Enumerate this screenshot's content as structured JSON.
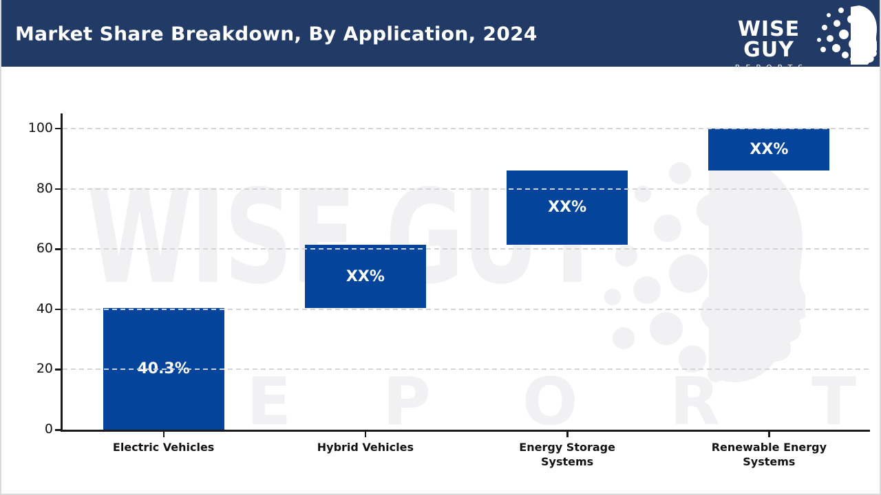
{
  "header": {
    "title": "Market Share Breakdown, By Application, 2024",
    "bg_color": "#213a66",
    "logo": {
      "wordmark": "WISE GUY",
      "subtext": "REPORTS"
    }
  },
  "watermark": {
    "line1": "WISE GUY",
    "line2": "R E P O R T S",
    "color": "#f1f1f3"
  },
  "chart_data": {
    "type": "bar",
    "subtype": "waterfall",
    "title": "Market Share Breakdown, By Application, 2024",
    "categories": [
      "Electric Vehicles",
      "Hybrid Vehicles",
      "Energy Storage Systems",
      "Renewable Energy Systems"
    ],
    "tick_labels": [
      "Electric Vehicles",
      "Hybrid Vehicles",
      "Energy Storage\nSystems",
      "Renewable Energy\nSystems"
    ],
    "segments": [
      {
        "category": "Electric Vehicles",
        "start": 0,
        "end": 40.3,
        "label": "40.3%"
      },
      {
        "category": "Hybrid Vehicles",
        "start": 40.3,
        "end": 61.5,
        "label": "XX%"
      },
      {
        "category": "Energy Storage Systems",
        "start": 61.5,
        "end": 86.0,
        "label": "XX%"
      },
      {
        "category": "Renewable Energy Systems",
        "start": 86.0,
        "end": 100.0,
        "label": "XX%"
      }
    ],
    "values": [
      40.3,
      21.2,
      24.5,
      14.0
    ],
    "labels": [
      "40.3%",
      "XX%",
      "XX%",
      "XX%"
    ],
    "xlabel": "",
    "ylabel": "",
    "yticks": [
      0,
      20,
      40,
      60,
      80,
      100
    ],
    "ylim": [
      0,
      105
    ],
    "grid": "horizontal-dashed",
    "grid_over_bars": true,
    "legend": "none",
    "bar_color": "#04449a",
    "bar_label_color": "#ffffff",
    "axis_color": "#1a1a1a",
    "grid_color": "#d4d4d4"
  }
}
